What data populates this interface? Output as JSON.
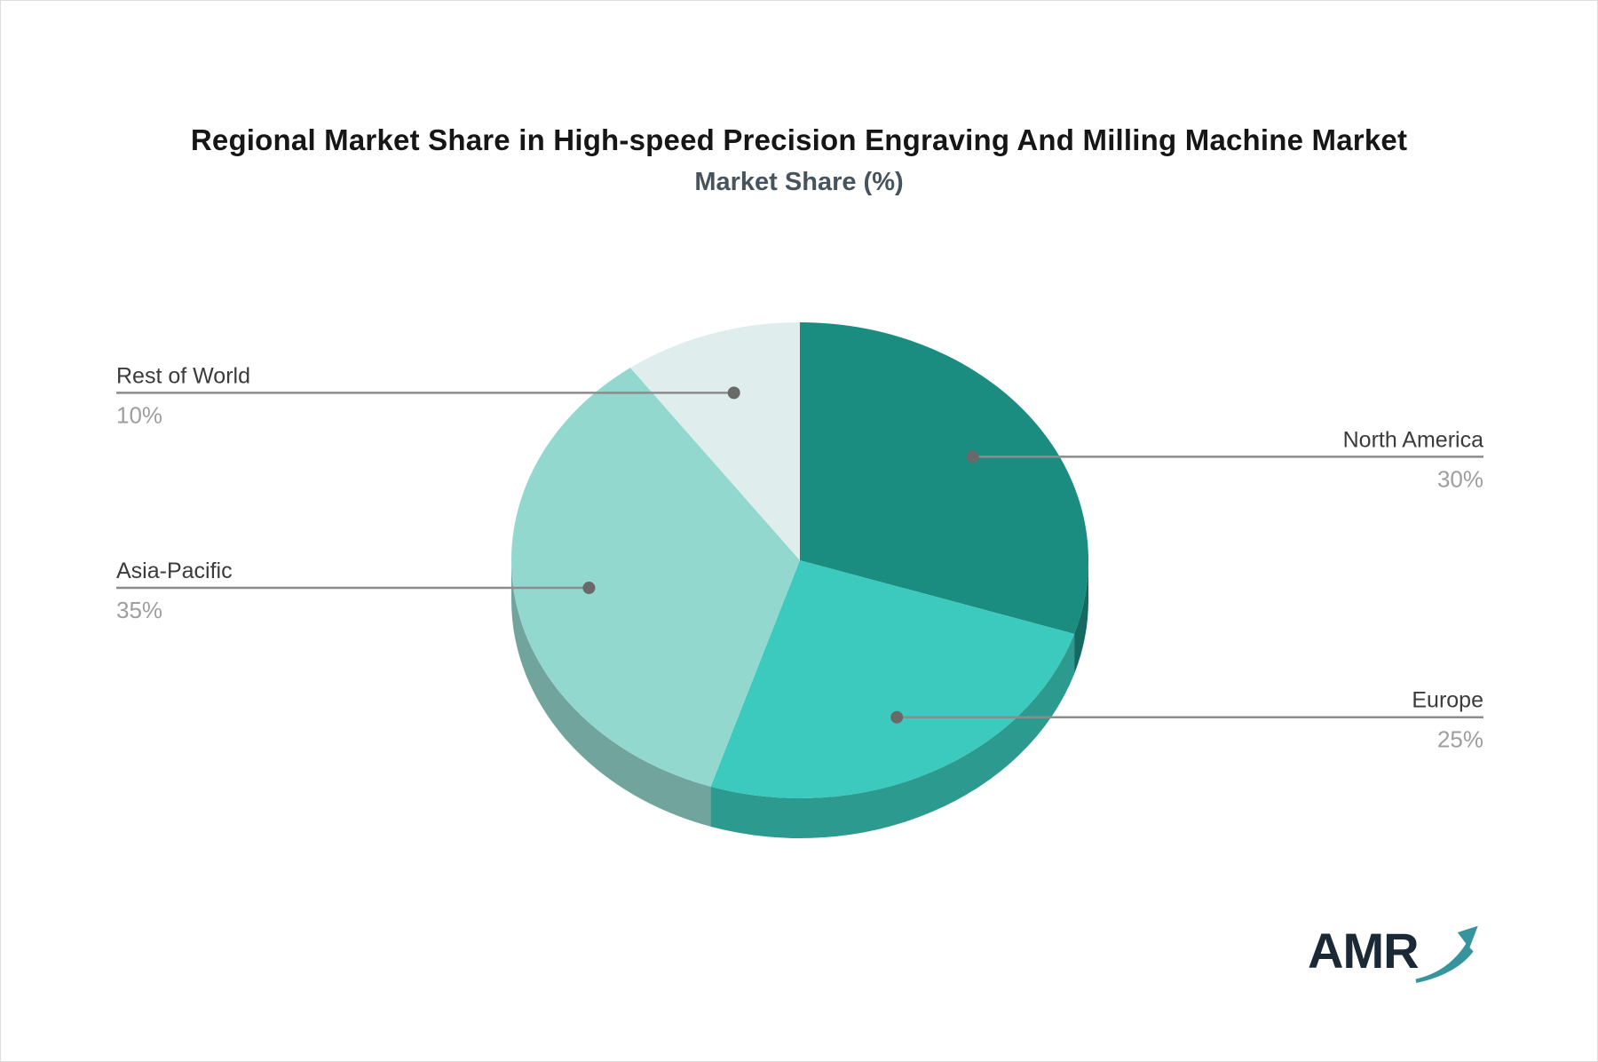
{
  "header": {
    "title": "Regional Market Share in High-speed Precision Engraving And Milling Machine Market",
    "title_color": "#161616",
    "subtitle": "Market Share (%)",
    "subtitle_color": "#47545e"
  },
  "chart_data": {
    "type": "pie",
    "title": "Market Share (%)",
    "unit": "%",
    "direction": "clockwise",
    "start_angle": "12-o-clock",
    "effect": "3d",
    "slices": [
      {
        "label": "North America",
        "value": 30,
        "percent_label": "30%",
        "color": "#1a8c80",
        "label_side": "right"
      },
      {
        "label": "Europe",
        "value": 25,
        "percent_label": "25%",
        "color": "#3bcabd",
        "label_side": "right"
      },
      {
        "label": "Asia-Pacific",
        "value": 35,
        "percent_label": "35%",
        "color": "#93d8cf",
        "label_side": "left"
      },
      {
        "label": "Rest of World",
        "value": 10,
        "percent_label": "10%",
        "color": "#dfeeec",
        "label_side": "left"
      }
    ],
    "style": {
      "leader_line_color": "#8c8c8c",
      "dot_color": "#696969",
      "label_color": "#3b3b3b",
      "value_color": "#9e9e9e"
    }
  },
  "logo": {
    "text": "AMR",
    "text_color": "#1b2936",
    "arrow_color": "#35949c"
  }
}
